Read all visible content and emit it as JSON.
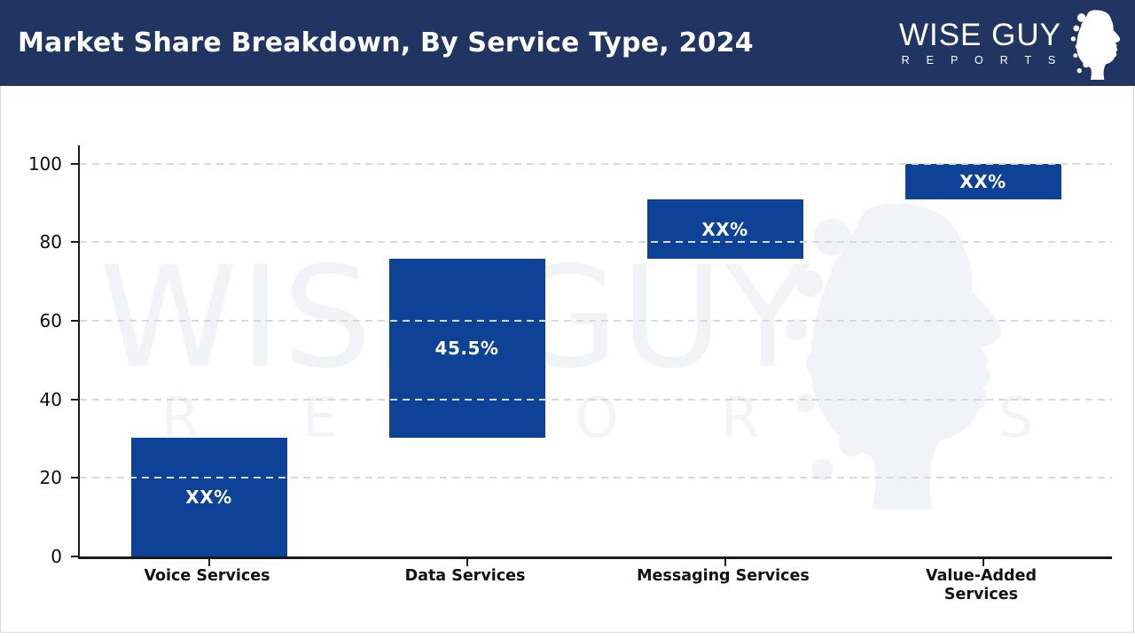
{
  "header": {
    "title": "Market Share Breakdown, By Service Type, 2024",
    "logo": {
      "name": "WISE GUY",
      "tagline": "R E P O R T S"
    }
  },
  "watermark": {
    "line1": "WISE GUY",
    "line2": "R E P O R T S"
  },
  "chart_data": {
    "type": "waterfall",
    "title": "Market Share Breakdown, By Service Type, 2024",
    "categories": [
      "Voice Services",
      "Data Services",
      "Messaging Services",
      "Value-Added\nServices"
    ],
    "segments": [
      {
        "category": "Voice Services",
        "start": 0,
        "end": 30.3,
        "label": "XX%"
      },
      {
        "category": "Data Services",
        "start": 30.3,
        "end": 75.8,
        "label": "45.5%"
      },
      {
        "category": "Messaging Services",
        "start": 75.8,
        "end": 90.9,
        "label": "XX%"
      },
      {
        "category": "Value-Added Services",
        "start": 90.9,
        "end": 100,
        "label": "XX%"
      }
    ],
    "yticks": [
      0,
      20,
      40,
      60,
      80,
      100
    ],
    "ylim": [
      0,
      104.7
    ],
    "grid": "horizontal-dashed",
    "legend": "none",
    "xlabel": "",
    "ylabel": ""
  },
  "colors": {
    "header_bg": "#203561",
    "bar": "#0d4296",
    "grid": "#d9d9d9",
    "axis": "#1a1a1a",
    "watermark": "#f2f3f6",
    "frame": "#d9d9d9"
  }
}
